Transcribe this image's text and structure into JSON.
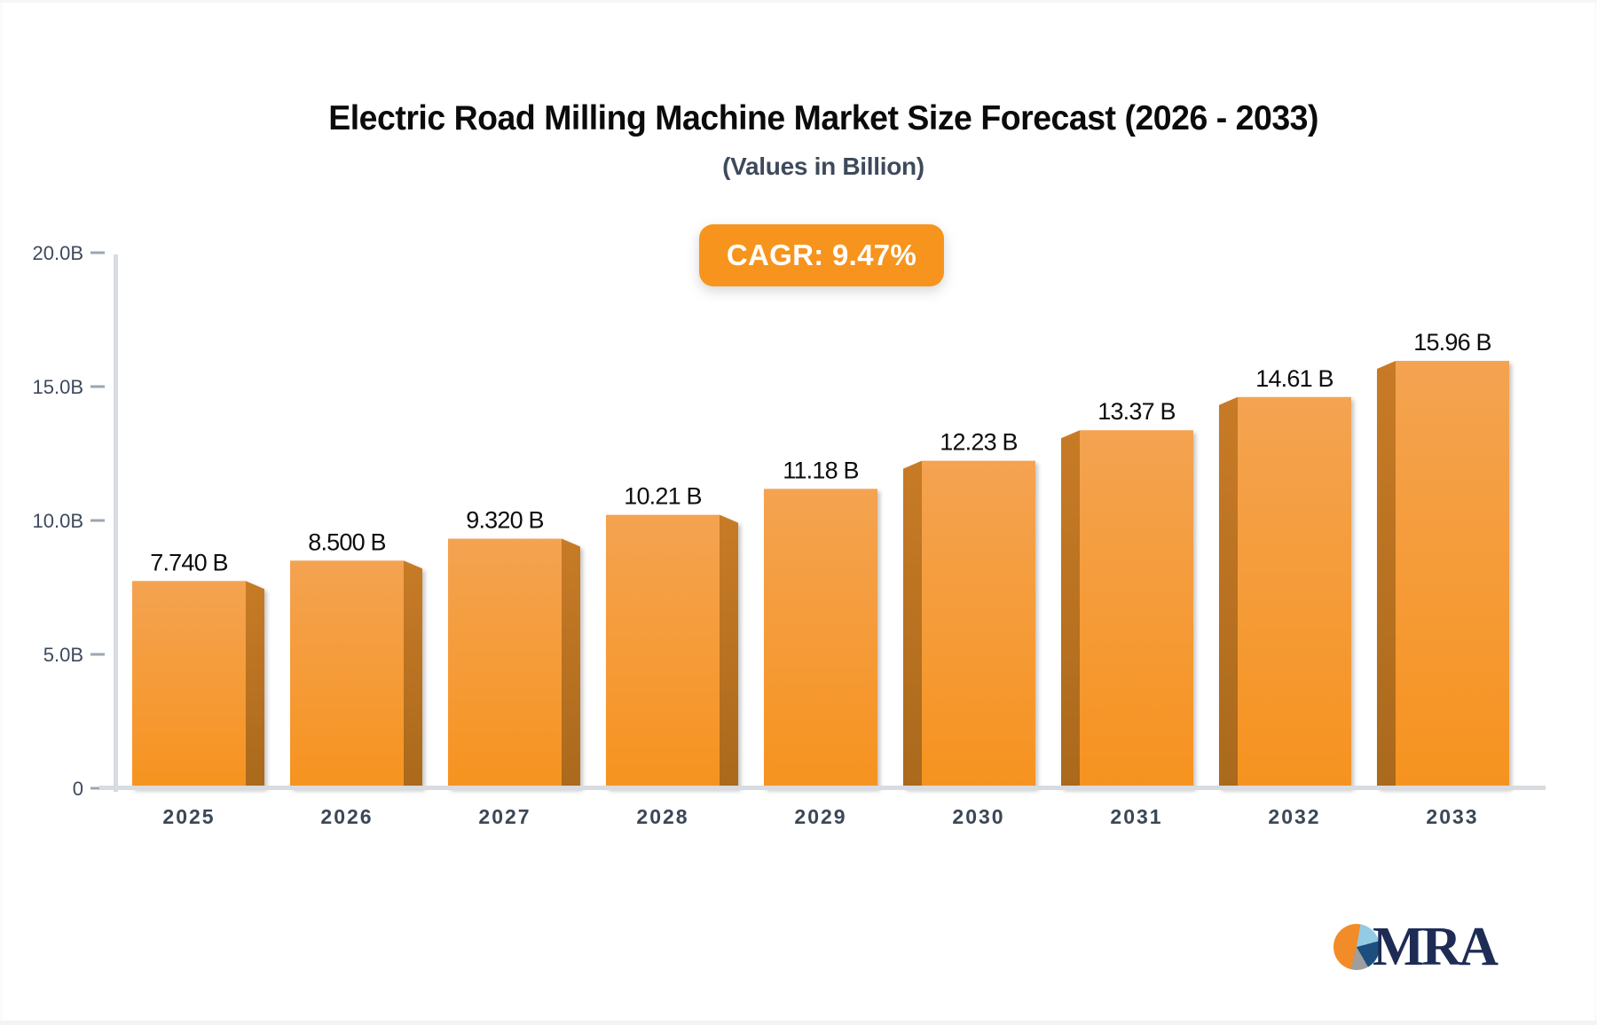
{
  "chart_data": {
    "type": "bar",
    "title": "Electric Road Milling Machine Market Size Forecast (2026 - 2033)",
    "subtitle": "(Values in Billion)",
    "cagr_label": "CAGR: 9.47%",
    "categories": [
      "2025",
      "2026",
      "2027",
      "2028",
      "2029",
      "2030",
      "2031",
      "2032",
      "2033"
    ],
    "values": [
      7.74,
      8.5,
      9.32,
      10.21,
      11.18,
      12.23,
      13.37,
      14.61,
      15.96
    ],
    "value_labels": [
      "7.740 B",
      "8.500 B",
      "9.320 B",
      "10.21 B",
      "11.18 B",
      "12.23 B",
      "13.37 B",
      "14.61 B",
      "15.96 B"
    ],
    "unit": "Billion",
    "xlabel": "",
    "ylabel": "",
    "ylim": [
      0,
      20
    ],
    "yticks": [
      {
        "value": 0,
        "label": "0"
      },
      {
        "value": 5,
        "label": "5.0B"
      },
      {
        "value": 10,
        "label": "10.0B"
      },
      {
        "value": 15,
        "label": "15.0B"
      },
      {
        "value": 20,
        "label": "20.0B"
      }
    ],
    "grid": false,
    "legend": false,
    "bar_style": "3d-extruded",
    "colors": {
      "bar_front_top": "#f4a351",
      "bar_front_bottom": "#f6931f",
      "bar_side_top": "#c87b26",
      "bar_side_bottom": "#aa691c",
      "badge_background": "#f7941d",
      "badge_text": "#ffffff",
      "axis_line": "#d8dbdf",
      "tick_mark": "#9ca6b0",
      "axis_text": "#3d4a5c",
      "value_text": "#0d0d0d",
      "title_text": "#0b0b0b",
      "subtitle_text": "#3e4a5b"
    }
  },
  "logo": {
    "text": "MRA",
    "text_color": "#1e2c55",
    "pie_colors": {
      "orange": "#f28c28",
      "light_blue": "#93cbe4",
      "navy": "#1c4e80",
      "gray": "#9e9e9e"
    }
  }
}
